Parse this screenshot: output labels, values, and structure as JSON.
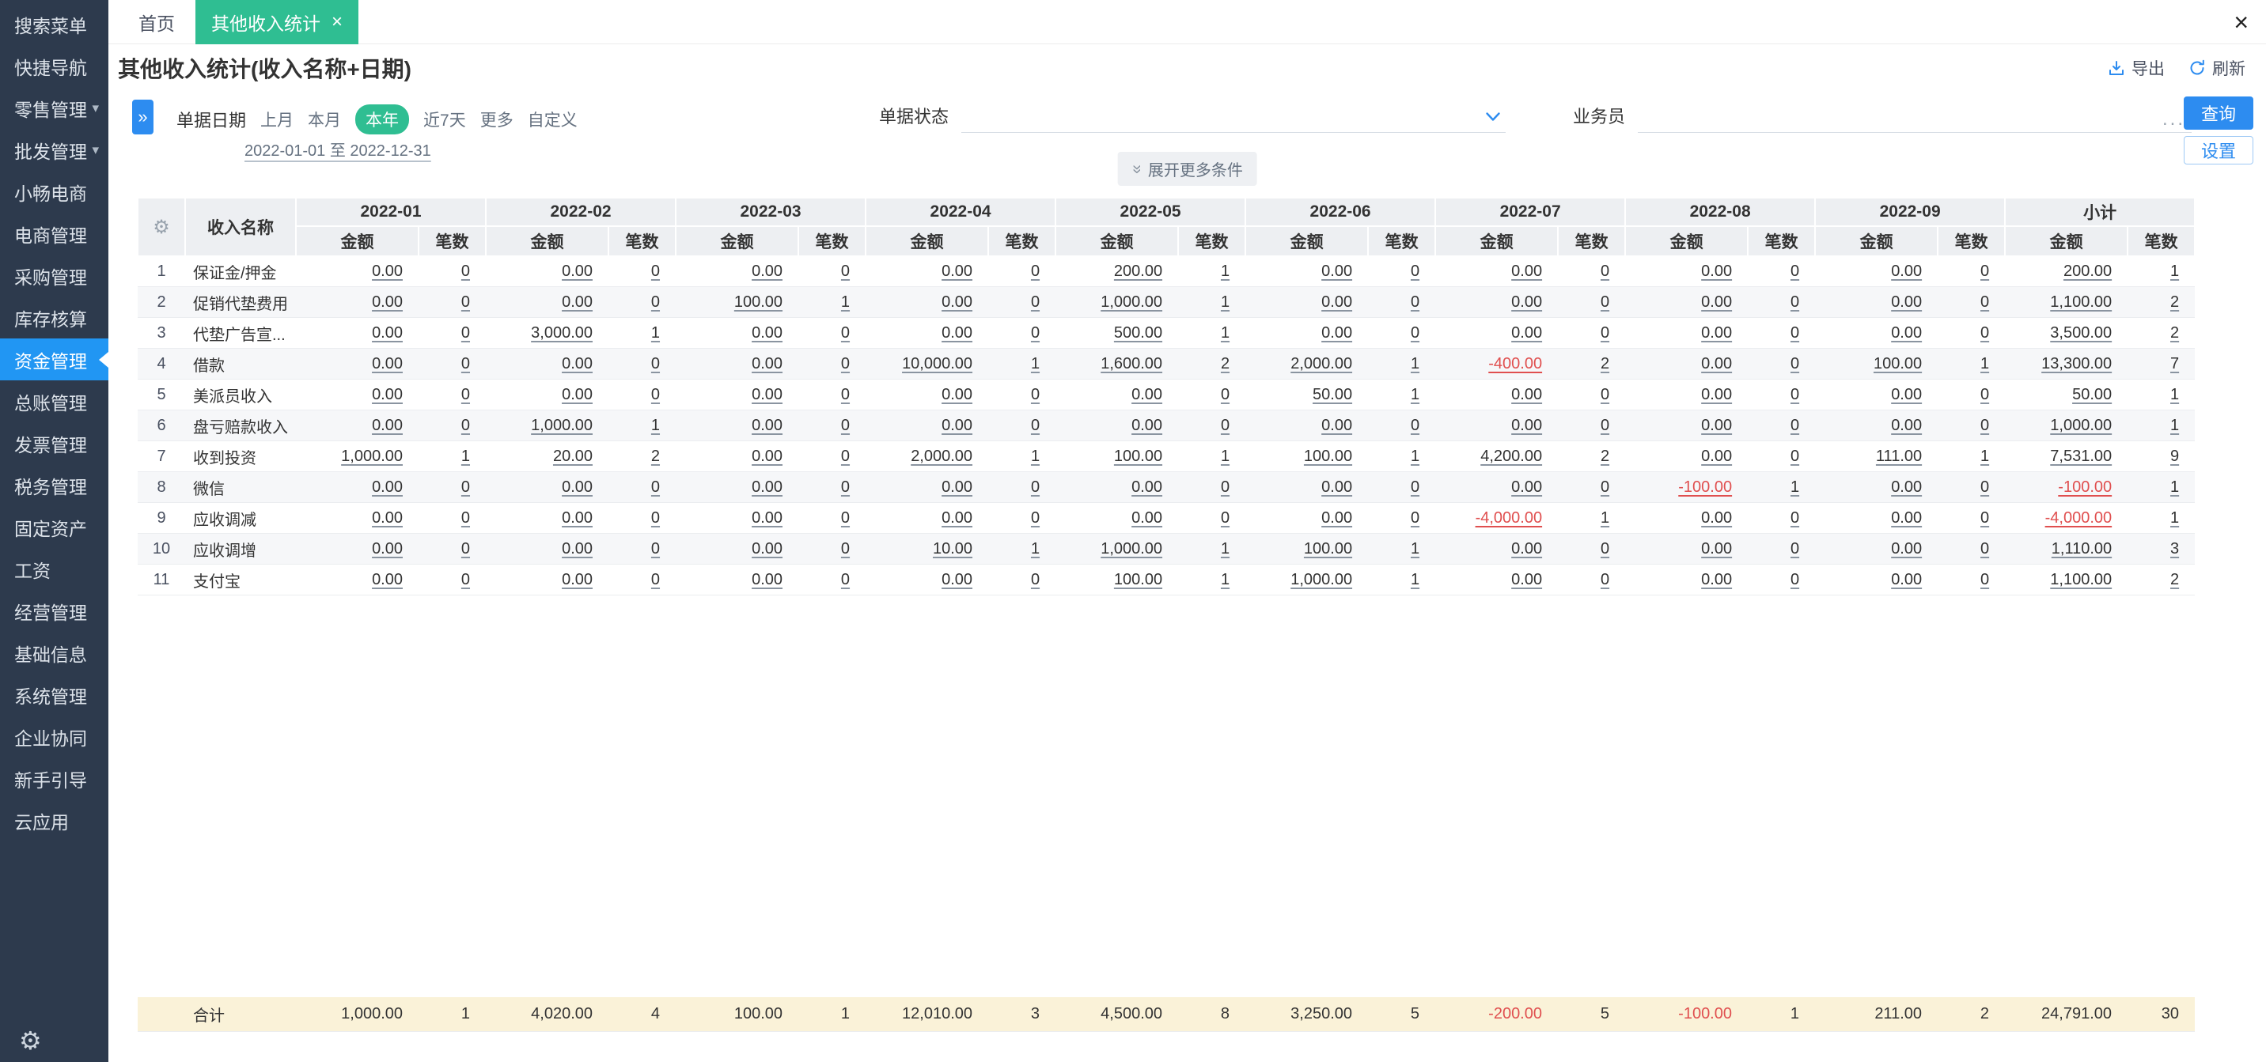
{
  "sidebar": {
    "items": [
      {
        "label": "搜索菜单"
      },
      {
        "label": "快捷导航"
      },
      {
        "label": "零售管理",
        "caret": true
      },
      {
        "label": "批发管理",
        "caret": true
      },
      {
        "label": "小畅电商"
      },
      {
        "label": "电商管理"
      },
      {
        "label": "采购管理"
      },
      {
        "label": "库存核算"
      },
      {
        "label": "资金管理",
        "active": true
      },
      {
        "label": "总账管理"
      },
      {
        "label": "发票管理"
      },
      {
        "label": "税务管理"
      },
      {
        "label": "固定资产"
      },
      {
        "label": "工资"
      },
      {
        "label": "经营管理"
      },
      {
        "label": "基础信息"
      },
      {
        "label": "系统管理"
      },
      {
        "label": "企业协同"
      },
      {
        "label": "新手引导"
      },
      {
        "label": "云应用"
      }
    ]
  },
  "tabs": {
    "home": "首页",
    "active": "其他收入统计"
  },
  "header": {
    "title": "其他收入统计(收入名称+日期)",
    "export_label": "导出",
    "refresh_label": "刷新"
  },
  "filters": {
    "date_label": "单据日期",
    "quick_options": [
      "上月",
      "本月",
      "本年",
      "近7天",
      "更多",
      "自定义"
    ],
    "active_option": "本年",
    "date_range": "2022-01-01 至 2022-12-31",
    "status_label": "单据状态",
    "salesman_label": "业务员",
    "more_label": "展开更多条件",
    "query_label": "查询",
    "settings_label": "设置"
  },
  "table": {
    "name_header": "收入名称",
    "amount_header": "金额",
    "count_header": "笔数",
    "months": [
      "2022-01",
      "2022-02",
      "2022-03",
      "2022-04",
      "2022-05",
      "2022-06",
      "2022-07",
      "2022-08",
      "2022-09"
    ],
    "subtotal_header": "小计",
    "rows": [
      {
        "no": "1",
        "name": "保证金/押金",
        "values": [
          "0.00",
          "0",
          "0.00",
          "0",
          "0.00",
          "0",
          "0.00",
          "0",
          "200.00",
          "1",
          "0.00",
          "0",
          "0.00",
          "0",
          "0.00",
          "0",
          "0.00",
          "0",
          "200.00",
          "1"
        ]
      },
      {
        "no": "2",
        "name": "促销代垫费用",
        "values": [
          "0.00",
          "0",
          "0.00",
          "0",
          "100.00",
          "1",
          "0.00",
          "0",
          "1,000.00",
          "1",
          "0.00",
          "0",
          "0.00",
          "0",
          "0.00",
          "0",
          "0.00",
          "0",
          "1,100.00",
          "2"
        ]
      },
      {
        "no": "3",
        "name": "代垫广告宣...",
        "values": [
          "0.00",
          "0",
          "3,000.00",
          "1",
          "0.00",
          "0",
          "0.00",
          "0",
          "500.00",
          "1",
          "0.00",
          "0",
          "0.00",
          "0",
          "0.00",
          "0",
          "0.00",
          "0",
          "3,500.00",
          "2"
        ]
      },
      {
        "no": "4",
        "name": "借款",
        "values": [
          "0.00",
          "0",
          "0.00",
          "0",
          "0.00",
          "0",
          "10,000.00",
          "1",
          "1,600.00",
          "2",
          "2,000.00",
          "1",
          "-400.00",
          "2",
          "0.00",
          "0",
          "100.00",
          "1",
          "13,300.00",
          "7"
        ]
      },
      {
        "no": "5",
        "name": "美派员收入",
        "values": [
          "0.00",
          "0",
          "0.00",
          "0",
          "0.00",
          "0",
          "0.00",
          "0",
          "0.00",
          "0",
          "50.00",
          "1",
          "0.00",
          "0",
          "0.00",
          "0",
          "0.00",
          "0",
          "50.00",
          "1"
        ]
      },
      {
        "no": "6",
        "name": "盘亏赔款收入",
        "values": [
          "0.00",
          "0",
          "1,000.00",
          "1",
          "0.00",
          "0",
          "0.00",
          "0",
          "0.00",
          "0",
          "0.00",
          "0",
          "0.00",
          "0",
          "0.00",
          "0",
          "0.00",
          "0",
          "1,000.00",
          "1"
        ]
      },
      {
        "no": "7",
        "name": "收到投资",
        "values": [
          "1,000.00",
          "1",
          "20.00",
          "2",
          "0.00",
          "0",
          "2,000.00",
          "1",
          "100.00",
          "1",
          "100.00",
          "1",
          "4,200.00",
          "2",
          "0.00",
          "0",
          "111.00",
          "1",
          "7,531.00",
          "9"
        ]
      },
      {
        "no": "8",
        "name": "微信",
        "values": [
          "0.00",
          "0",
          "0.00",
          "0",
          "0.00",
          "0",
          "0.00",
          "0",
          "0.00",
          "0",
          "0.00",
          "0",
          "0.00",
          "0",
          "-100.00",
          "1",
          "0.00",
          "0",
          "-100.00",
          "1"
        ]
      },
      {
        "no": "9",
        "name": "应收调减",
        "values": [
          "0.00",
          "0",
          "0.00",
          "0",
          "0.00",
          "0",
          "0.00",
          "0",
          "0.00",
          "0",
          "0.00",
          "0",
          "-4,000.00",
          "1",
          "0.00",
          "0",
          "0.00",
          "0",
          "-4,000.00",
          "1"
        ]
      },
      {
        "no": "10",
        "name": "应收调增",
        "values": [
          "0.00",
          "0",
          "0.00",
          "0",
          "0.00",
          "0",
          "10.00",
          "1",
          "1,000.00",
          "1",
          "100.00",
          "1",
          "0.00",
          "0",
          "0.00",
          "0",
          "0.00",
          "0",
          "1,110.00",
          "3"
        ]
      },
      {
        "no": "11",
        "name": "支付宝",
        "values": [
          "0.00",
          "0",
          "0.00",
          "0",
          "0.00",
          "0",
          "0.00",
          "0",
          "100.00",
          "1",
          "1,000.00",
          "1",
          "0.00",
          "0",
          "0.00",
          "0",
          "0.00",
          "0",
          "1,100.00",
          "2"
        ]
      }
    ],
    "total_label": "合计",
    "totals": [
      "1,000.00",
      "1",
      "4,020.00",
      "4",
      "100.00",
      "1",
      "12,010.00",
      "3",
      "4,500.00",
      "8",
      "3,250.00",
      "5",
      "-200.00",
      "5",
      "-100.00",
      "1",
      "211.00",
      "2",
      "24,791.00",
      "30"
    ]
  },
  "colors": {
    "accent_blue": "#2d8cf0",
    "tab_green": "#2fbe92",
    "sidebar_active": "#2196f3",
    "negative_red": "#e04f4f",
    "totals_bg": "#faf2d8"
  }
}
